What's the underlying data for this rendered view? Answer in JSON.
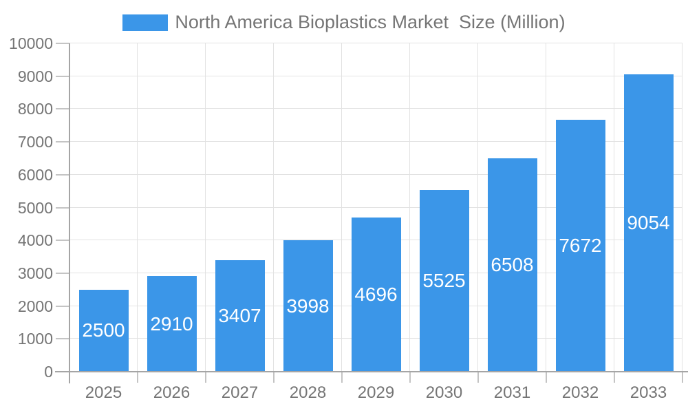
{
  "chart_data": {
    "type": "bar",
    "title": "North America Bioplastics Market  Size (Million)",
    "legend_position": "top-center",
    "categories": [
      "2025",
      "2026",
      "2027",
      "2028",
      "2029",
      "2030",
      "2031",
      "2032",
      "2033"
    ],
    "series": [
      {
        "name": "North America Bioplastics Market  Size (Million)",
        "values": [
          2500,
          2910,
          3407,
          3998,
          4696,
          5525,
          6508,
          7672,
          9054
        ]
      }
    ],
    "bar_labels": [
      "2500",
      "2910",
      "3407",
      "3998",
      "4696",
      "5525",
      "6508",
      "7672",
      "9054"
    ],
    "xlabel": "",
    "ylabel": "",
    "ylim": [
      0,
      10000
    ],
    "y_ticks": [
      0,
      1000,
      2000,
      3000,
      4000,
      5000,
      6000,
      7000,
      8000,
      9000,
      10000
    ],
    "y_tick_labels": [
      "0",
      "1000",
      "2000",
      "3000",
      "4000",
      "5000",
      "6000",
      "7000",
      "8000",
      "9000",
      "10000"
    ],
    "grid": true,
    "colors": {
      "bar": "#3b96e8",
      "bar_label": "#ffffff",
      "axis_text": "#757575",
      "grid_line": "#e2e2e2",
      "axis_line": "#a5a5a5",
      "tick_line": "#c4c4c4",
      "background": "#ffffff"
    }
  }
}
